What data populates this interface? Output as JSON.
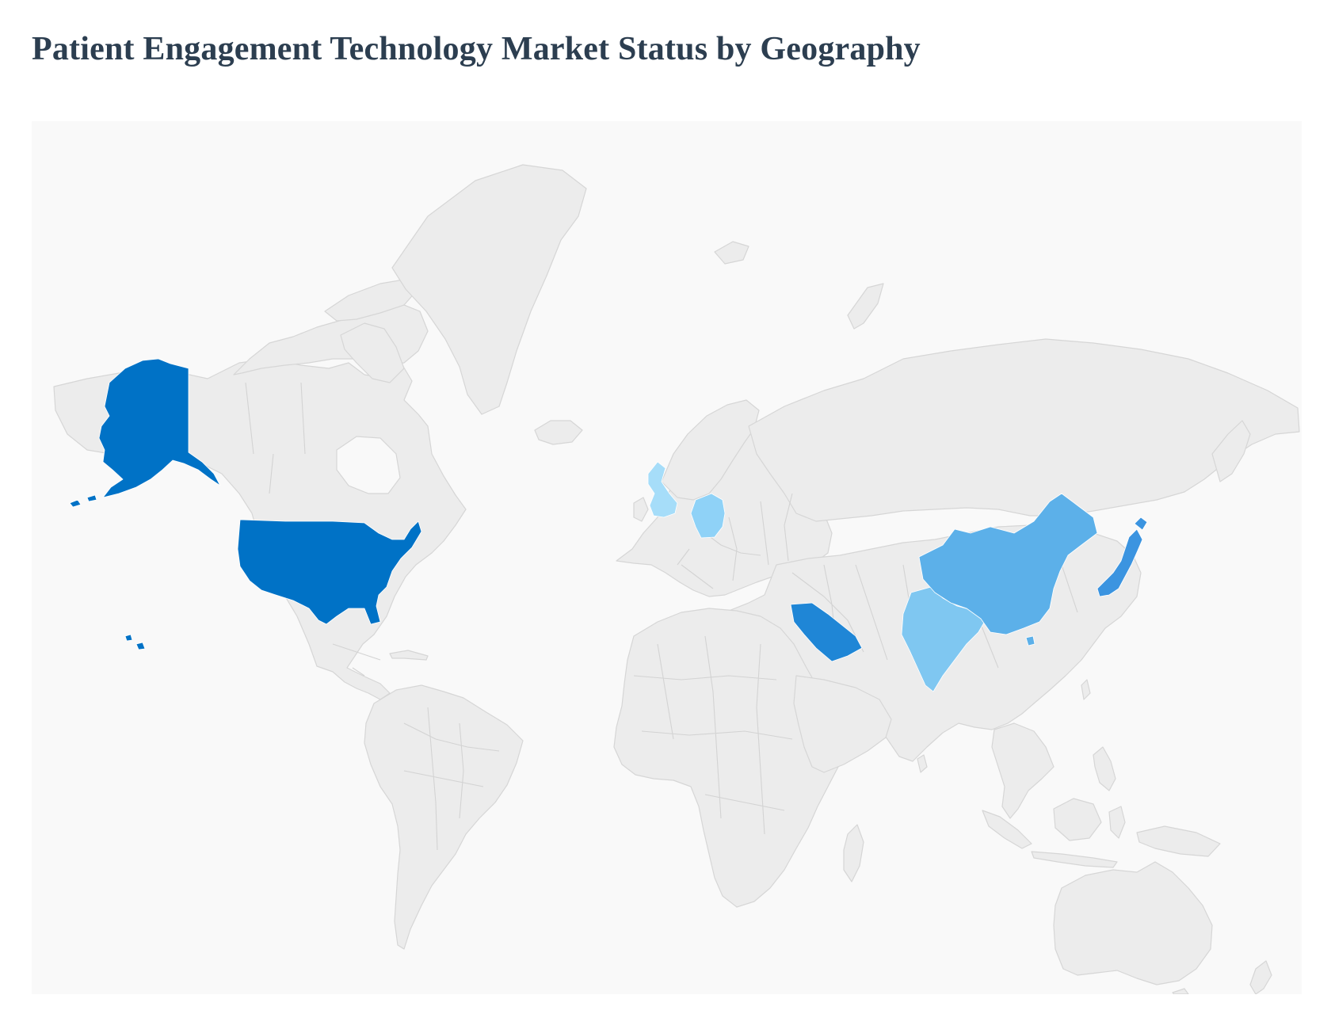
{
  "page": {
    "title": "Patient Engagement Technology Market Status by Geography"
  },
  "map": {
    "type": "choropleth",
    "projection": "world",
    "background_color": "#f9f9f9",
    "land_color": "#ececec",
    "border_color": "#d3d3d3",
    "highlighted_regions": [
      {
        "id": "united-states",
        "color": "#0072c6",
        "shade": "darkest"
      },
      {
        "id": "japan",
        "color": "#3b94e0",
        "shade": "dark"
      },
      {
        "id": "saudi-arabia",
        "color": "#1f86d6",
        "shade": "dark"
      },
      {
        "id": "china",
        "color": "#5cb0e9",
        "shade": "medium"
      },
      {
        "id": "india",
        "color": "#7fc7f1",
        "shade": "light"
      },
      {
        "id": "germany",
        "color": "#8fd2f7",
        "shade": "light"
      },
      {
        "id": "united-kingdom",
        "color": "#a6ddf9",
        "shade": "lightest"
      }
    ]
  }
}
